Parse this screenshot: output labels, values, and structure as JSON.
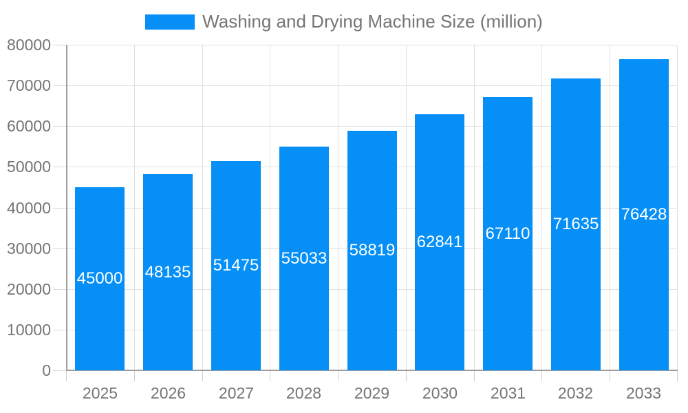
{
  "legend": {
    "label": "Washing and Drying Machine Size (million)"
  },
  "chart_data": {
    "type": "bar",
    "title": "Washing and Drying Machine Size (million)",
    "categories": [
      "2025",
      "2026",
      "2027",
      "2028",
      "2029",
      "2030",
      "2031",
      "2032",
      "2033"
    ],
    "values": [
      45000,
      48135,
      51475,
      55033,
      58819,
      62841,
      67110,
      71635,
      76428
    ],
    "xlabel": "",
    "ylabel": "",
    "ylim": [
      0,
      80000
    ],
    "y_tick_step": 10000,
    "y_tick_labels": [
      "0",
      "10000",
      "20000",
      "30000",
      "40000",
      "50000",
      "60000",
      "70000",
      "80000"
    ],
    "grid": true,
    "legend_position": "top-center",
    "value_labels": "white text centered inside each bar",
    "colors": {
      "bar": "#058ff7",
      "value_label": "#ffffff",
      "axis_text": "#757575",
      "legend_text": "#757575",
      "gridline": "#e0e0e0",
      "axis_line": "#9e9e9e",
      "background": "#ffffff"
    }
  }
}
